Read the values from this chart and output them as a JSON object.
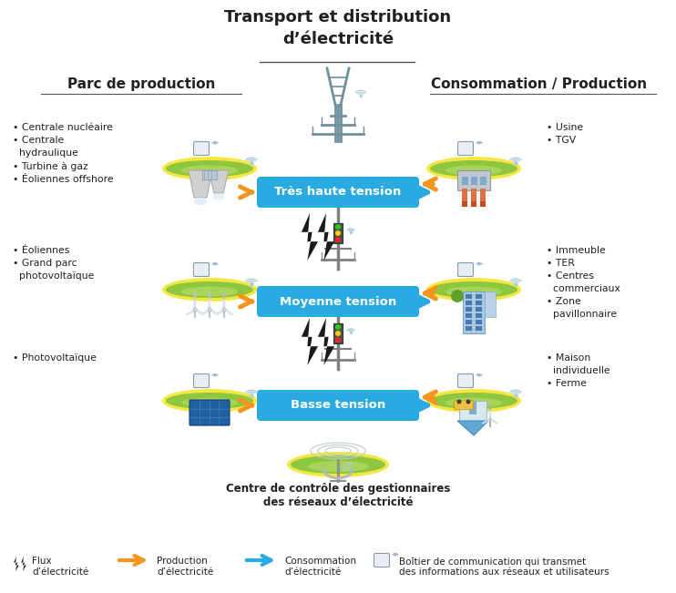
{
  "title": "Transport et distribution\nd’électricité",
  "left_header": "Parc de production",
  "right_header": "Consommation / Production",
  "tension_labels": [
    "Très haute tension",
    "Moyenne tension",
    "Basse tension"
  ],
  "left_labels": [
    "• Centrale nucléaire\n• Centrale\n  hydraulique\n• Turbine à gaz\n• Éoliennes offshore",
    "• Éoliennes\n• Grand parc\n  photovoltaïque",
    "• Photovoltaïque"
  ],
  "right_labels": [
    "• Usine\n• TGV",
    "• Immeuble\n• TER\n• Centres\n  commerciaux\n• Zone\n  pavillonnaire",
    "• Maison\n  individuelle\n• Ferme"
  ],
  "bottom_label": "Centre de contrôle des gestionnaires\ndes réseaux d’électricité",
  "legend_items": [
    "Flux\nd’électricité",
    "Production\nd’électricité",
    "Consommation\nd’électricité",
    "Boîtier de communication qui transmet\ndes informations aux réseaux et utilisateurs"
  ],
  "orange_color": "#f7941d",
  "blue_color": "#29abe2",
  "dark_color": "#231f20",
  "bg_color": "#ffffff"
}
